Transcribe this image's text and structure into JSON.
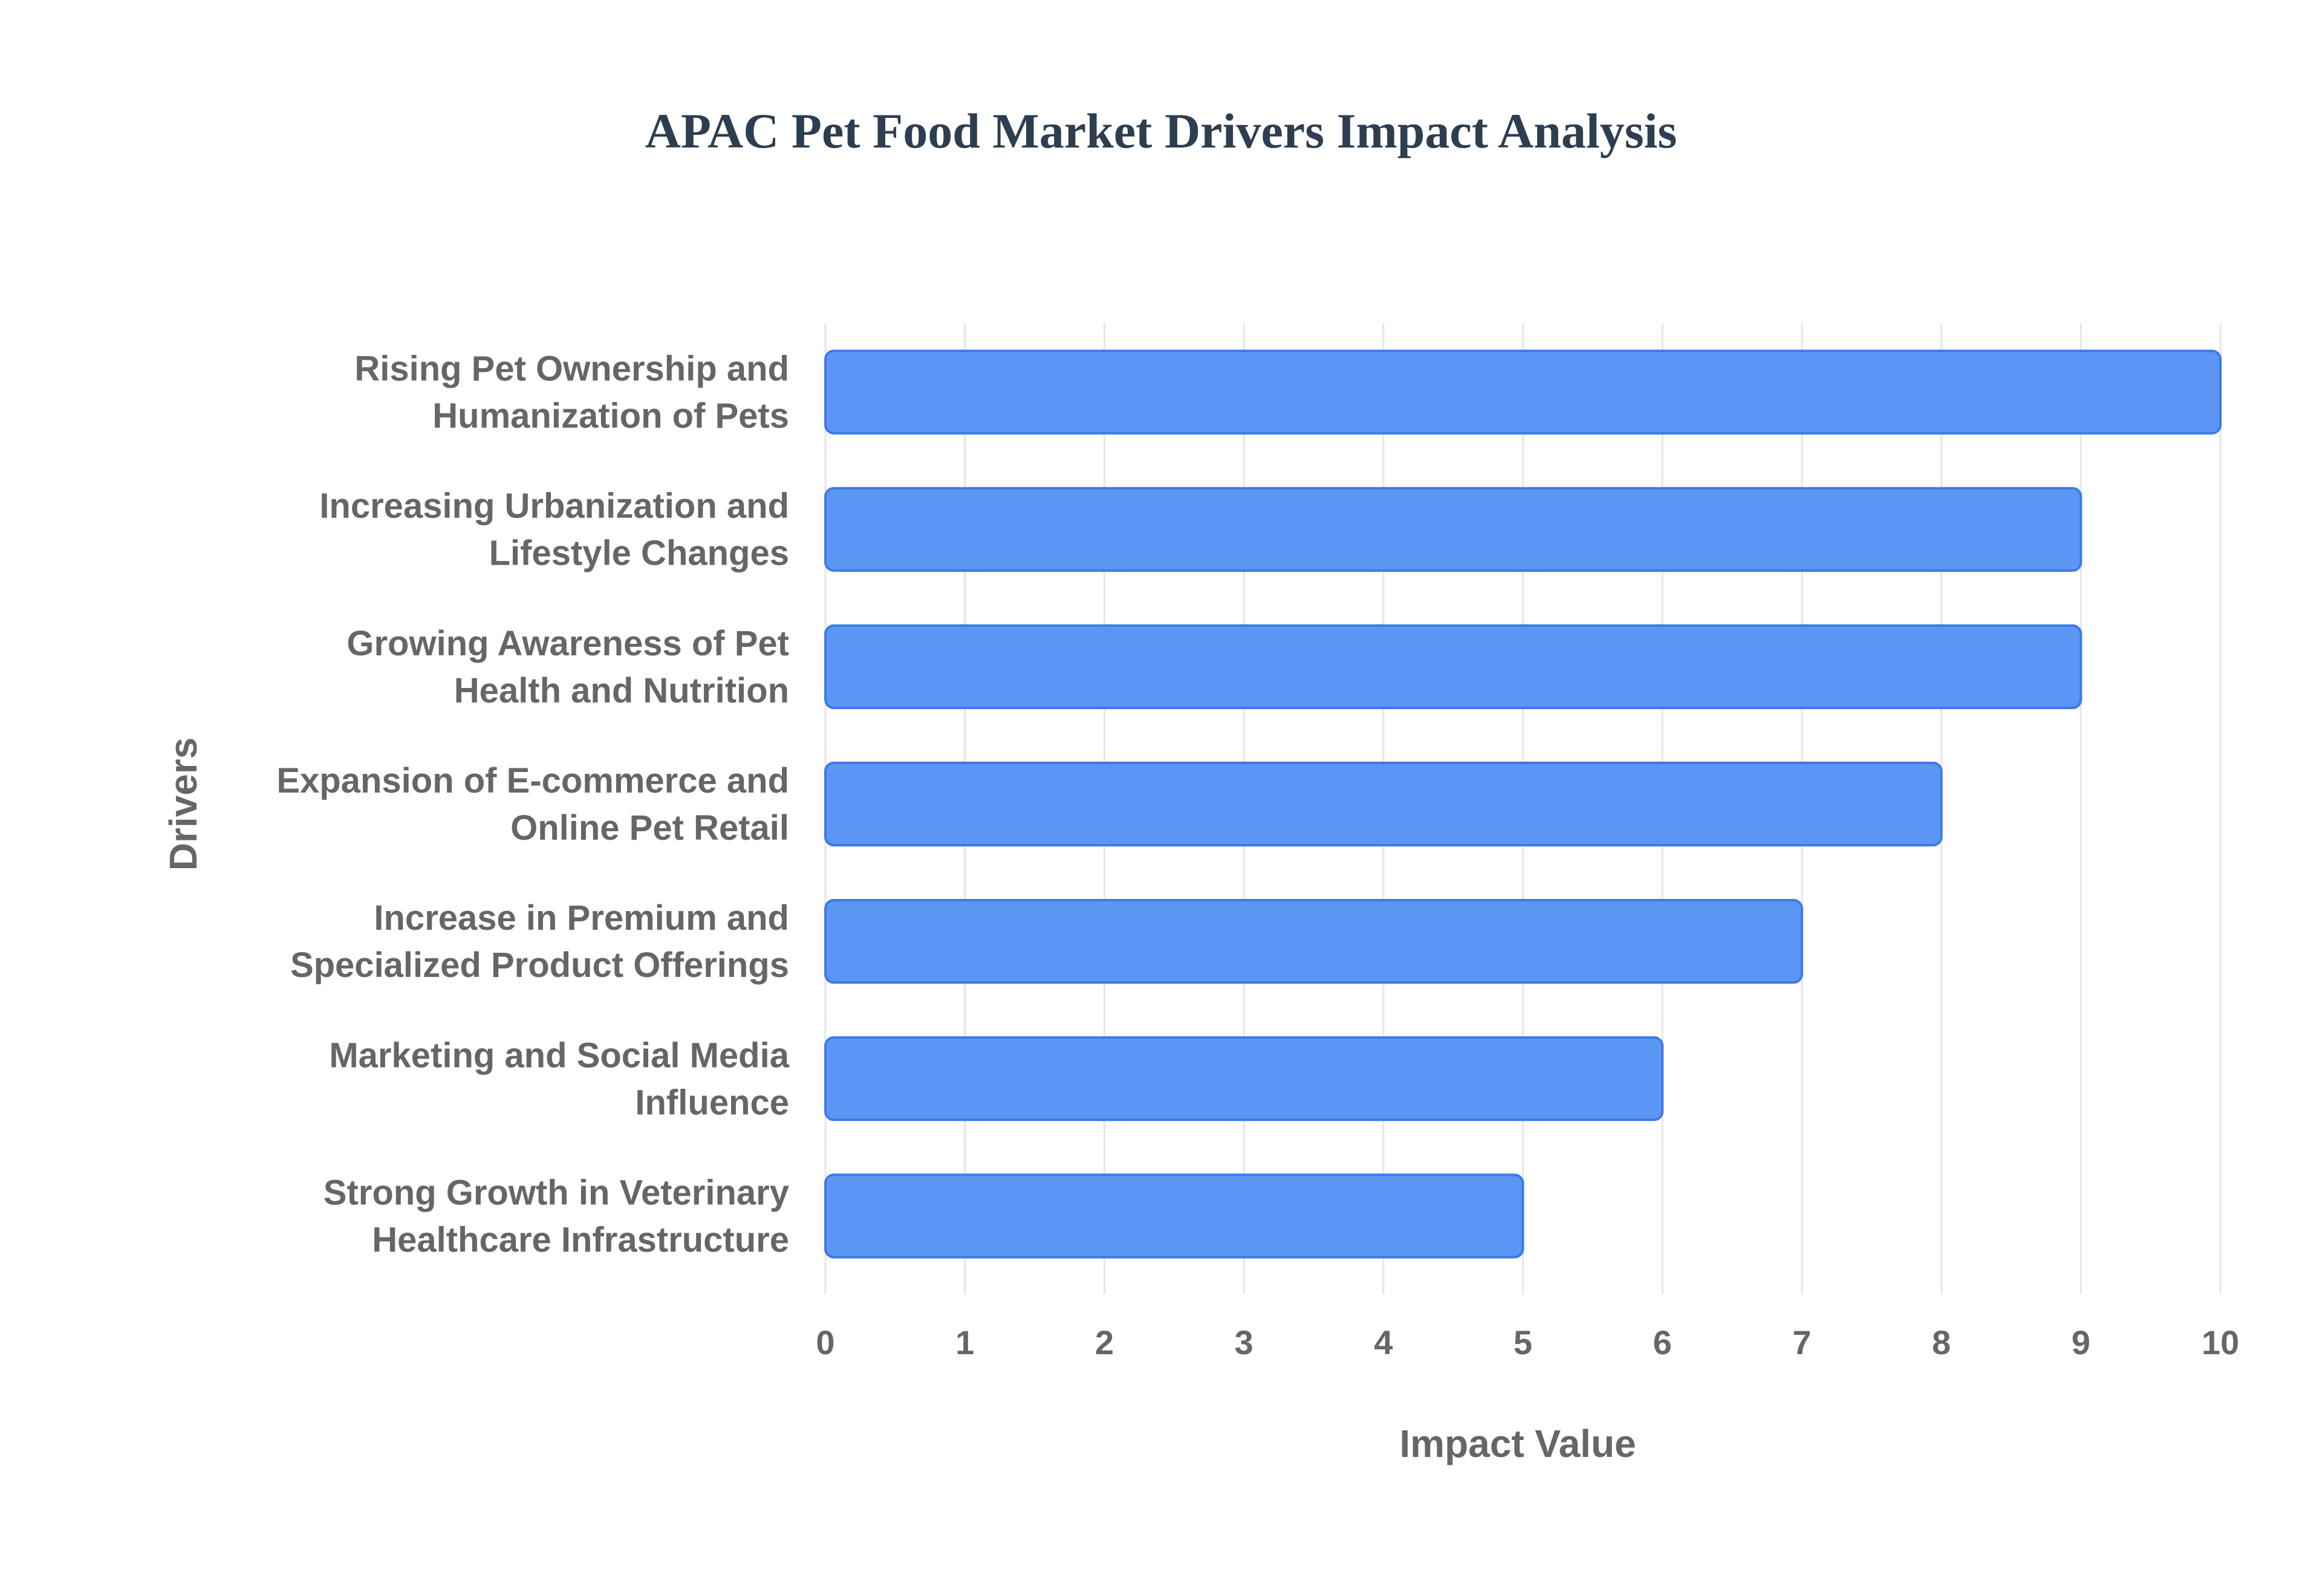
{
  "chart_data": {
    "type": "bar",
    "orientation": "horizontal",
    "title": "APAC Pet Food Market Drivers Impact Analysis",
    "xlabel": "Impact Value",
    "ylabel": "Drivers",
    "xlim": [
      0,
      10
    ],
    "x_ticks": [
      "0",
      "1",
      "2",
      "3",
      "4",
      "5",
      "6",
      "7",
      "8",
      "9",
      "10"
    ],
    "grid": true,
    "legend": "none",
    "categories": [
      [
        "Rising Pet Ownership and",
        "Humanization of Pets"
      ],
      [
        "Increasing Urbanization and",
        "Lifestyle Changes"
      ],
      [
        "Growing Awareness of Pet",
        "Health and Nutrition"
      ],
      [
        "Expansion of E-commerce and",
        "Online Pet Retail"
      ],
      [
        "Increase in Premium and",
        "Specialized Product Offerings"
      ],
      [
        "Marketing and Social Media",
        "Influence"
      ],
      [
        "Strong Growth in Veterinary",
        "Healthcare Infrastructure"
      ]
    ],
    "values": [
      10,
      9,
      9,
      8,
      7,
      6,
      5
    ],
    "colors": {
      "bar_fill": "#5b96f5",
      "bar_stroke": "#3d7ae8",
      "grid": "#e6e6e6",
      "axis_text": "#666666",
      "title": "#2c3e50"
    }
  }
}
